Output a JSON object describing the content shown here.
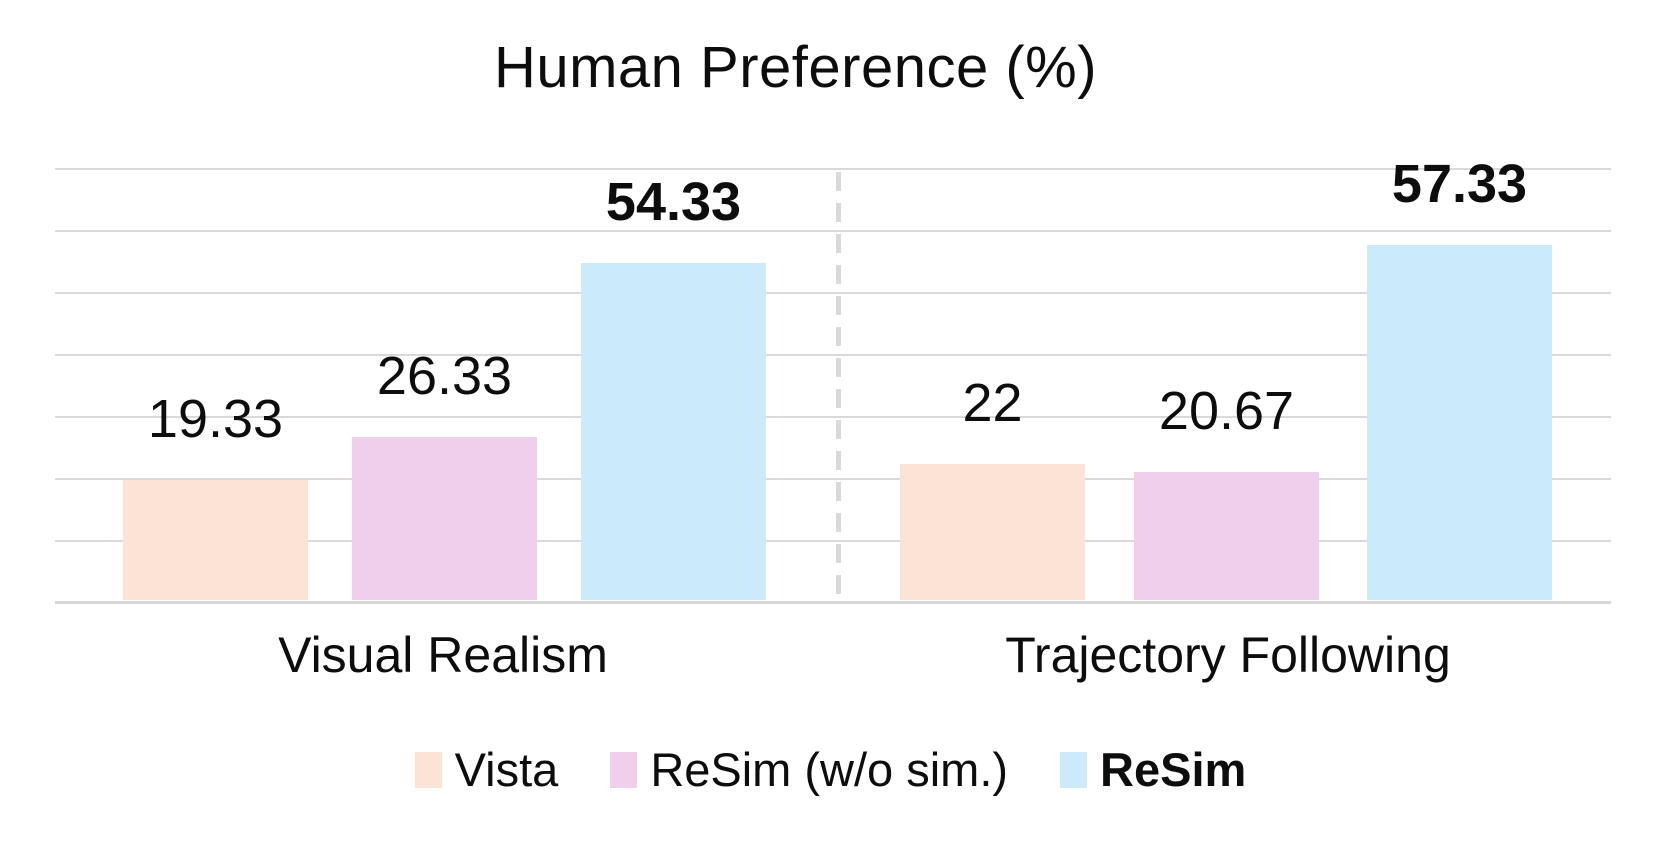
{
  "chart_data": {
    "type": "bar",
    "title": "Human Preference (%)",
    "categories": [
      "Visual Realism",
      "Trajectory Following"
    ],
    "series": [
      {
        "name": "Vista",
        "color": "#FBE3D6",
        "values": [
          19.33,
          22
        ],
        "value_labels": [
          "19.33",
          "22"
        ],
        "emphasis": false
      },
      {
        "name": "ReSim (w/o sim.)",
        "color": "#F0CFED",
        "values": [
          26.33,
          20.67
        ],
        "value_labels": [
          "26.33",
          "20.67"
        ],
        "emphasis": false
      },
      {
        "name": "ReSim",
        "color": "#CBEBFA",
        "values": [
          54.33,
          57.33
        ],
        "value_labels": [
          "54.33",
          "57.33"
        ],
        "emphasis": true
      }
    ],
    "ylim": [
      0,
      70
    ],
    "gridline_step": 10,
    "grid": true,
    "y_axis_tick_labels_visible": false,
    "legend_position": "bottom",
    "group_divider": "dashed vertical line between category groups",
    "colors": {
      "gridline": "#D9D9D9",
      "divider": "#D9D9D9",
      "text": "#000000",
      "background": "#FFFFFF"
    }
  }
}
